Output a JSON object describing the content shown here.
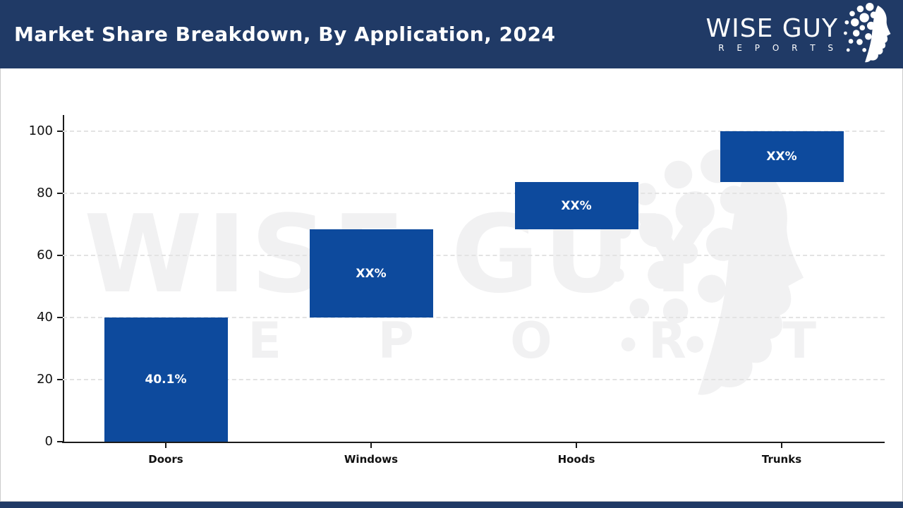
{
  "header": {
    "title": "Market Share Breakdown, By Application, 2024"
  },
  "logo": {
    "line1": "WISE GUY",
    "line2": "R E P O R T S"
  },
  "watermark": {
    "line1": "WISE GUY",
    "line2": "R E P O R T S"
  },
  "colors": {
    "header_navy": "#203a66",
    "bar_blue": "#0d4a9d",
    "gridline": "#e3e3e3",
    "axis": "#1a1a1a",
    "watermark_gray": "#f1f1f2",
    "label_white": "#ffffff",
    "tick_text": "#111111"
  },
  "chart_data": {
    "type": "bar",
    "subtype": "waterfall",
    "title": "Market Share Breakdown, By Application, 2024",
    "categories": [
      "Doors",
      "Windows",
      "Hoods",
      "Trunks"
    ],
    "segments": [
      {
        "category": "Doors",
        "start": 0,
        "end": 40.1,
        "label": "40.1%"
      },
      {
        "category": "Windows",
        "start": 40.1,
        "end": 68.4,
        "label": "XX%"
      },
      {
        "category": "Hoods",
        "start": 68.4,
        "end": 83.6,
        "label": "XX%"
      },
      {
        "category": "Trunks",
        "start": 83.6,
        "end": 100.0,
        "label": "XX%"
      }
    ],
    "xlabel": "",
    "ylabel": "",
    "y_ticks": [
      0,
      20,
      40,
      60,
      80,
      100
    ],
    "ylim": [
      0,
      105
    ],
    "grid": "horizontal-dashed",
    "legend": "none"
  }
}
